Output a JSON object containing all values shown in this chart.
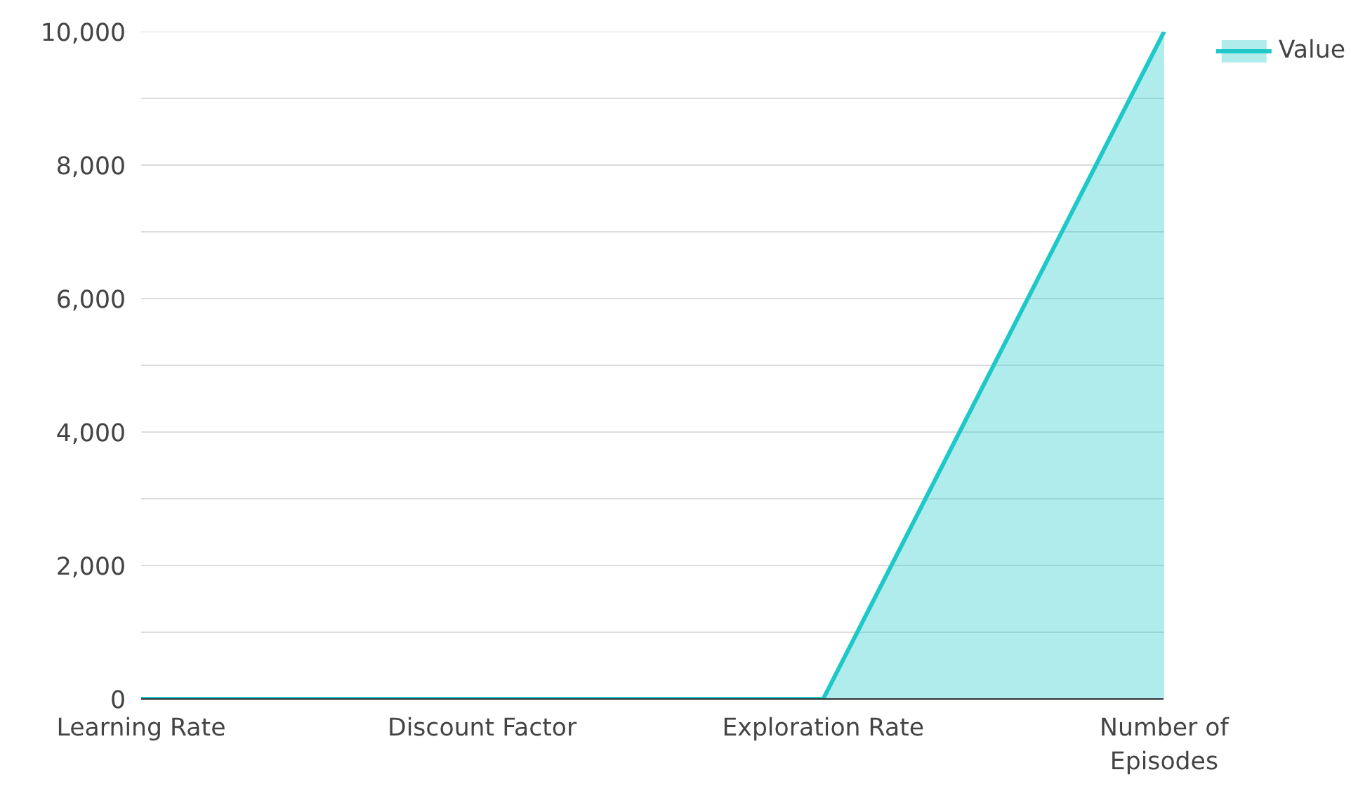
{
  "chart_data": {
    "type": "area",
    "categories": [
      "Learning Rate",
      "Discount Factor",
      "Exploration Rate",
      "Number of Episodes"
    ],
    "series": [
      {
        "name": "Value",
        "color": "#1fc8c8",
        "values": [
          0,
          0,
          0,
          10000
        ]
      }
    ],
    "ylim": [
      0,
      10000
    ],
    "yticks": [
      0,
      {
        "value": 1000,
        "label": null
      },
      {
        "value": 2000,
        "label": "2,000"
      },
      {
        "value": 3000,
        "label": null
      },
      {
        "value": 4000,
        "label": "4,000"
      },
      {
        "value": 5000,
        "label": null
      },
      {
        "value": 6000,
        "label": "6,000"
      },
      {
        "value": 7000,
        "label": null
      },
      {
        "value": 8000,
        "label": "8,000"
      },
      {
        "value": 9000,
        "label": null
      },
      {
        "value": 10000,
        "label": "10,000"
      }
    ],
    "grid": "y",
    "legend": "top right"
  }
}
